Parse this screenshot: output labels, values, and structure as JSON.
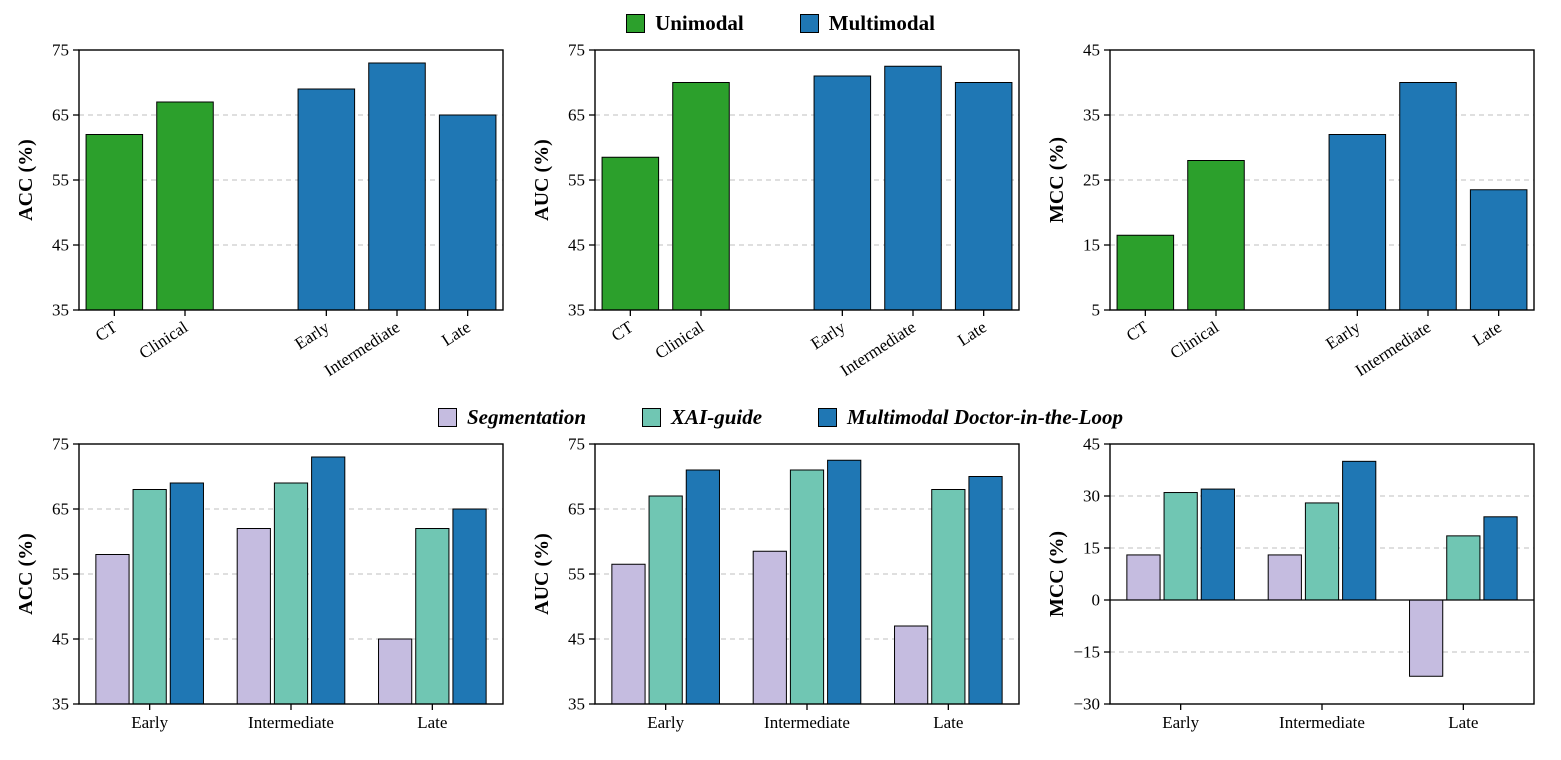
{
  "legends": [
    {
      "id": "top",
      "items": [
        {
          "label": "Unimodal",
          "color": "#2ca02c"
        },
        {
          "label": "Multimodal",
          "color": "#1f77b4"
        }
      ]
    },
    {
      "id": "bottom",
      "items": [
        {
          "label": "Segmentation",
          "color": "#c5bce0"
        },
        {
          "label": "XAI-guide",
          "color": "#70c6b3"
        },
        {
          "label": "Multimodal Doctor-in-the-Loop",
          "color": "#1f77b4"
        }
      ]
    }
  ],
  "axis": {
    "grid_color": "#bfbfbf",
    "spine_color": "#000000",
    "bar_edge_color": "#000000"
  },
  "chart_data": [
    {
      "type": "bar",
      "title": "",
      "ylabel": "ACC (%)",
      "ylim": [
        35,
        75
      ],
      "yticks": [
        35,
        45,
        55,
        65,
        75
      ],
      "xtick_rotation": -33,
      "grid": "dashed-horizontal",
      "legend_position": "figure-top",
      "bars": [
        {
          "label": "CT",
          "series": "Unimodal",
          "value": 62
        },
        {
          "label": "Clinical",
          "series": "Unimodal",
          "value": 67
        },
        {
          "label": "Early",
          "series": "Multimodal",
          "value": 69
        },
        {
          "label": "Intermediate",
          "series": "Multimodal",
          "value": 73
        },
        {
          "label": "Late",
          "series": "Multimodal",
          "value": 65
        }
      ]
    },
    {
      "type": "bar",
      "title": "",
      "ylabel": "AUC (%)",
      "ylim": [
        35,
        75
      ],
      "yticks": [
        35,
        45,
        55,
        65,
        75
      ],
      "xtick_rotation": -33,
      "grid": "dashed-horizontal",
      "legend_position": "figure-top",
      "bars": [
        {
          "label": "CT",
          "series": "Unimodal",
          "value": 58.5
        },
        {
          "label": "Clinical",
          "series": "Unimodal",
          "value": 70
        },
        {
          "label": "Early",
          "series": "Multimodal",
          "value": 71
        },
        {
          "label": "Intermediate",
          "series": "Multimodal",
          "value": 72.5
        },
        {
          "label": "Late",
          "series": "Multimodal",
          "value": 70
        }
      ]
    },
    {
      "type": "bar",
      "title": "",
      "ylabel": "MCC (%)",
      "ylim": [
        5,
        45
      ],
      "yticks": [
        5,
        15,
        25,
        35,
        45
      ],
      "xtick_rotation": -33,
      "grid": "dashed-horizontal",
      "legend_position": "figure-top",
      "bars": [
        {
          "label": "CT",
          "series": "Unimodal",
          "value": 16.5
        },
        {
          "label": "Clinical",
          "series": "Unimodal",
          "value": 28
        },
        {
          "label": "Early",
          "series": "Multimodal",
          "value": 32
        },
        {
          "label": "Intermediate",
          "series": "Multimodal",
          "value": 40
        },
        {
          "label": "Late",
          "series": "Multimodal",
          "value": 23.5
        }
      ]
    },
    {
      "type": "bar",
      "title": "",
      "ylabel": "ACC (%)",
      "ylim": [
        35,
        75
      ],
      "yticks": [
        35,
        45,
        55,
        65,
        75
      ],
      "xtick_rotation": 0,
      "grid": "dashed-horizontal",
      "legend_position": "figure-top",
      "categories": [
        "Early",
        "Intermediate",
        "Late"
      ],
      "series": [
        {
          "name": "Segmentation",
          "values": [
            58,
            62,
            45
          ]
        },
        {
          "name": "XAI-guide",
          "values": [
            68,
            69,
            62
          ]
        },
        {
          "name": "Multimodal Doctor-in-the-Loop",
          "values": [
            69,
            73,
            65
          ]
        }
      ]
    },
    {
      "type": "bar",
      "title": "",
      "ylabel": "AUC (%)",
      "ylim": [
        35,
        75
      ],
      "yticks": [
        35,
        45,
        55,
        65,
        75
      ],
      "xtick_rotation": 0,
      "grid": "dashed-horizontal",
      "legend_position": "figure-top",
      "categories": [
        "Early",
        "Intermediate",
        "Late"
      ],
      "series": [
        {
          "name": "Segmentation",
          "values": [
            56.5,
            58.5,
            47
          ]
        },
        {
          "name": "XAI-guide",
          "values": [
            67,
            71,
            68
          ]
        },
        {
          "name": "Multimodal Doctor-in-the-Loop",
          "values": [
            71,
            72.5,
            70
          ]
        }
      ]
    },
    {
      "type": "bar",
      "title": "",
      "ylabel": "MCC (%)",
      "ylim": [
        -30,
        45
      ],
      "yticks": [
        -30,
        -15,
        0,
        15,
        30,
        45
      ],
      "xtick_rotation": 0,
      "grid": "dashed-horizontal",
      "legend_position": "figure-top",
      "categories": [
        "Early",
        "Intermediate",
        "Late"
      ],
      "series": [
        {
          "name": "Segmentation",
          "values": [
            13,
            13,
            -22
          ]
        },
        {
          "name": "XAI-guide",
          "values": [
            31,
            28,
            18.5
          ]
        },
        {
          "name": "Multimodal Doctor-in-the-Loop",
          "values": [
            32,
            40,
            24
          ]
        }
      ]
    }
  ]
}
